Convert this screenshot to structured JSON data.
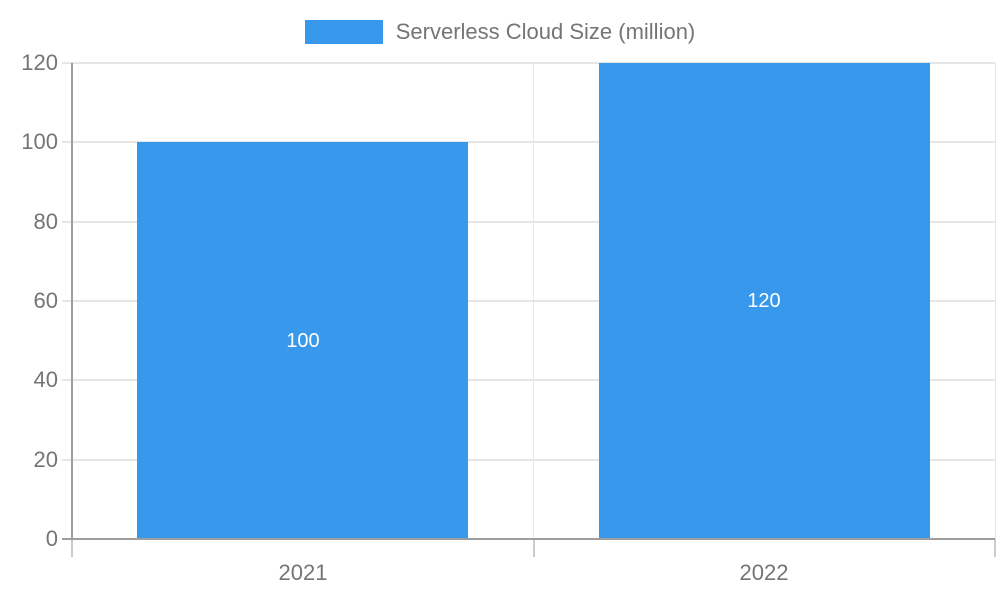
{
  "chart_data": {
    "type": "bar",
    "title": "",
    "categories": [
      "2021",
      "2022"
    ],
    "series": [
      {
        "name": "Serverless Cloud Size (million)",
        "values": [
          100,
          120
        ]
      }
    ],
    "bar_value_labels": [
      "100",
      "120"
    ],
    "xlabel": "",
    "ylabel": "",
    "ylim": [
      0,
      120
    ],
    "yticks": [
      0,
      20,
      40,
      60,
      80,
      100,
      120
    ],
    "grid": true,
    "legend_position": "top-center",
    "colors": {
      "bar": "#3899EC",
      "axis_text": "#757575",
      "grid_line": "#E6E6E6",
      "axis_line": "#9E9E9E",
      "minor_tick": "#CCCCCC",
      "bar_label_text": "#FFFFFF",
      "background": "#FFFFFF"
    }
  }
}
